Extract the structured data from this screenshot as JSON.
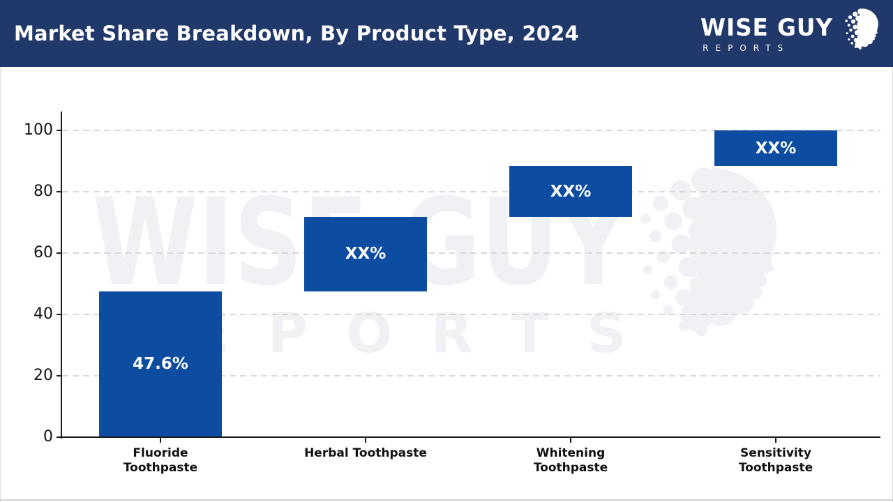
{
  "header": {
    "title": "Market Share Breakdown, By Product Type, 2024",
    "logo": {
      "line1": "WISE GUY",
      "line2": "REPORTS"
    }
  },
  "watermark": {
    "line1": "WISE GUY",
    "line2": "R E P O R T S"
  },
  "chart_data": {
    "type": "bar",
    "subtype": "waterfall",
    "title": "Market Share Breakdown, By Product Type, 2024",
    "categories": [
      "Fluoride Toothpaste",
      "Herbal Toothpaste",
      "Whitening Toothpaste",
      "Sensitivity Toothpaste"
    ],
    "category_lines": [
      [
        "Fluoride",
        "Toothpaste"
      ],
      [
        "Herbal Toothpaste"
      ],
      [
        "Whitening",
        "Toothpaste"
      ],
      [
        "Sensitivity",
        "Toothpaste"
      ]
    ],
    "segments": [
      {
        "category": "Fluoride Toothpaste",
        "start": 0,
        "end": 47.6,
        "label": "47.6%"
      },
      {
        "category": "Herbal Toothpaste",
        "start": 47.6,
        "end": 71.8,
        "label": "XX%"
      },
      {
        "category": "Whitening Toothpaste",
        "start": 71.8,
        "end": 88.4,
        "label": "XX%"
      },
      {
        "category": "Sensitivity Toothpaste",
        "start": 88.4,
        "end": 100,
        "label": "XX%"
      }
    ],
    "y_ticks": [
      0,
      20,
      40,
      60,
      80,
      100
    ],
    "ylim": [
      0,
      106
    ],
    "xlabel": "",
    "ylabel": "",
    "grid": "dashed-horizontal",
    "legend": "none",
    "bar_color": "#0C4DA2"
  },
  "colors": {
    "header_bg": "#20386A",
    "bar": "#0C4DA2",
    "grid": "#d8d8d8",
    "axis": "#1a1a1a",
    "watermark": "#f0f1f4",
    "frame": "#dcdcdc"
  }
}
